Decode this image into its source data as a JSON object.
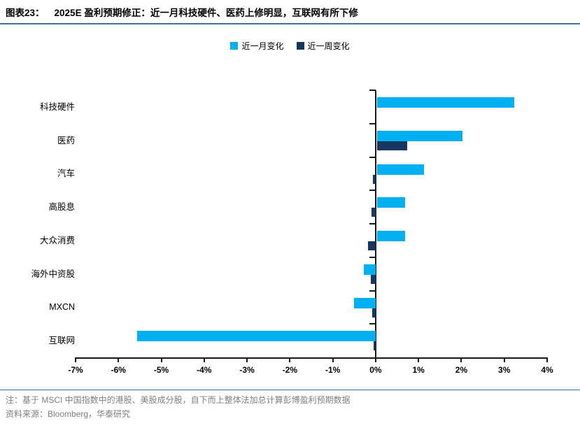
{
  "header": {
    "label": "图表23：",
    "title": "2025E 盈利预期修正：近一月科技硬件、医药上修明显，互联网有所下修"
  },
  "legend": {
    "items": [
      {
        "label": "近一月变化",
        "color": "#00b0f0"
      },
      {
        "label": "近一周变化",
        "color": "#17375e"
      }
    ]
  },
  "colors": {
    "month_bar": "#00b0f0",
    "week_bar": "#17375e",
    "rule_blue": "#41719c",
    "axis_black": "#1a1a1a",
    "footnote_gray": "#7f7f7f"
  },
  "chart_data": {
    "type": "bar",
    "orientation": "horizontal",
    "title": "2025E 盈利预期修正",
    "categories": [
      "科技硬件",
      "医药",
      "汽车",
      "高股息",
      "大众消费",
      "海外中资股",
      "MXCN",
      "互联网"
    ],
    "series": [
      {
        "name": "近一月变化",
        "color": "#00b0f0",
        "values": [
          3.2,
          2.0,
          1.1,
          0.66,
          0.65,
          -0.28,
          -0.5,
          -5.56
        ]
      },
      {
        "name": "近一周变化",
        "color": "#17375e",
        "values": [
          0,
          0.7,
          -0.07,
          -0.1,
          -0.17,
          -0.11,
          -0.08,
          -0.04
        ]
      }
    ],
    "value_unit": "%",
    "xlim": [
      -7,
      4
    ],
    "x_tick_labels": [
      "-7%",
      "-6%",
      "-5%",
      "-4%",
      "-3%",
      "-2%",
      "-1%",
      "0%",
      "1%",
      "2%",
      "3%",
      "4%"
    ],
    "grid": false,
    "legend_position": "top-center"
  },
  "footer": {
    "note": "注：基于 MSCI 中国指数中的港股、美股成分股，自下而上整体法加总计算彭博盈利预期数据",
    "source": "资料来源：Bloomberg，华泰研究"
  }
}
